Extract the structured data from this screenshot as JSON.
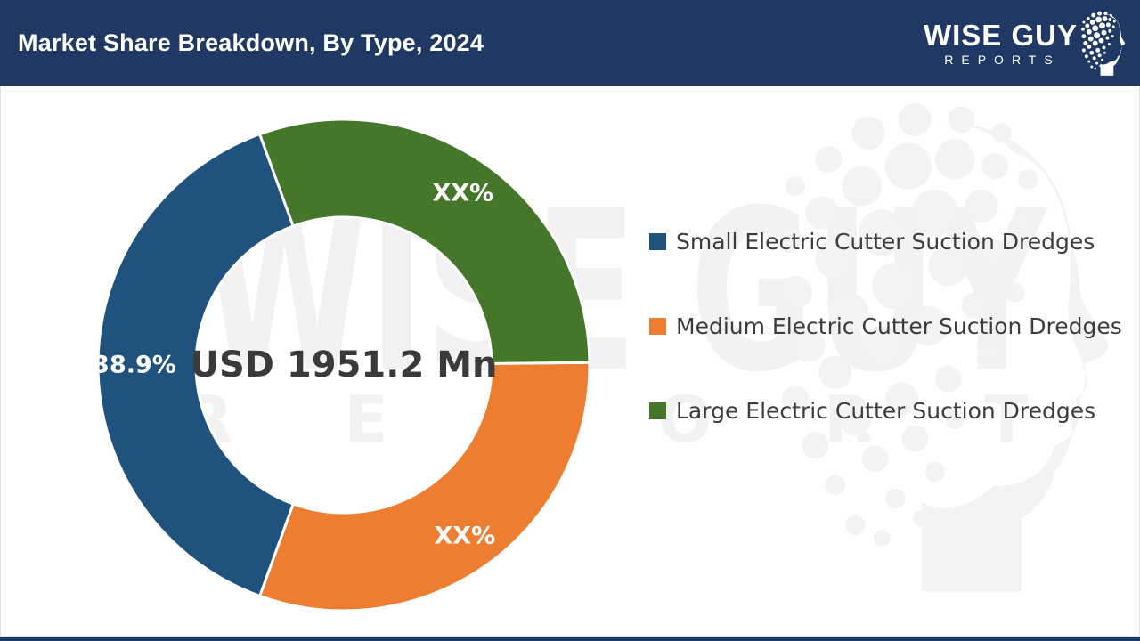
{
  "header": {
    "title": "Market Share Breakdown, By Type, 2024",
    "logo": {
      "line1": "WISE GUY",
      "line2": "REPORTS"
    }
  },
  "watermark": {
    "line1": "WISE GUY",
    "line2": "R E P O R T S"
  },
  "colors": {
    "header_bg": "#1F3864",
    "slice_small": "#20527E",
    "slice_medium": "#ED7D31",
    "slice_large": "#44772A"
  },
  "chart_data": {
    "type": "pie",
    "subtype": "donut",
    "title": "Market Share Breakdown, By Type, 2024",
    "center_label": "USD 1951.2 Mn",
    "legend_position": "right",
    "start_angle_deg": 110,
    "direction": "counterclockwise",
    "slices": [
      {
        "label": "Small Electric Cutter Suction Dredges",
        "value_pct": 38.9,
        "display_label": "38.9%",
        "color": "#20527E"
      },
      {
        "label": "Medium Electric Cutter Suction Dredges",
        "value_pct": 30.7,
        "display_label": "XX%",
        "color": "#ED7D31"
      },
      {
        "label": "Large Electric Cutter Suction Dredges",
        "value_pct": 30.4,
        "display_label": "XX%",
        "color": "#44772A"
      }
    ]
  }
}
